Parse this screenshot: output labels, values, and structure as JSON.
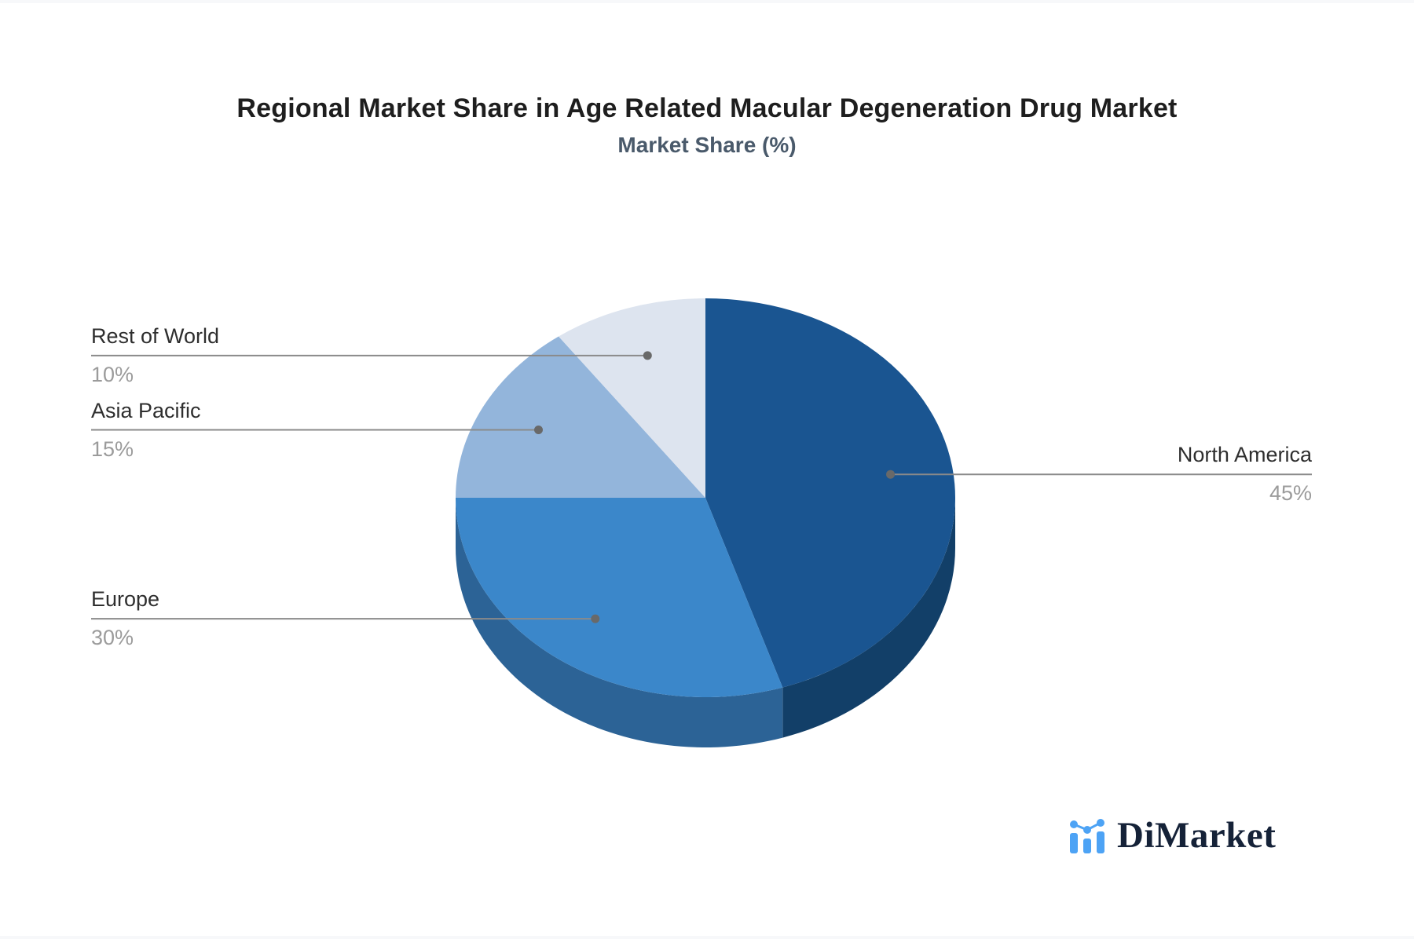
{
  "page": {
    "background_color": "#ffffff",
    "edge_strip_color": "#f7f8fa"
  },
  "header": {
    "title": "Regional Market Share in Age Related Macular Degeneration Drug Market",
    "subtitle": "Market Share (%)"
  },
  "chart_data": {
    "type": "pie",
    "style": "3d",
    "title": "Regional Market Share in Age Related Macular Degeneration Drug Market",
    "subtitle": "Market Share (%)",
    "unit": "percent",
    "start_angle_deg": 0,
    "direction": "clockwise",
    "legend_position": "leader-line-labels",
    "slices": [
      {
        "label": "North America",
        "value": 45,
        "pct_label": "45%",
        "color": "#1A5591",
        "side_color": "#123F68",
        "label_side": "right"
      },
      {
        "label": "Europe",
        "value": 30,
        "pct_label": "30%",
        "color": "#3B87CA",
        "side_color": "#2C6396",
        "label_side": "left"
      },
      {
        "label": "Asia Pacific",
        "value": 15,
        "pct_label": "15%",
        "color": "#93B5DB",
        "side_color": "#6E8FB4",
        "label_side": "left"
      },
      {
        "label": "Rest of World",
        "value": 10,
        "pct_label": "10%",
        "color": "#DDE4EF",
        "side_color": "#AEB7C6",
        "label_side": "left"
      }
    ],
    "label_text_color": "#2e2e2e",
    "pct_text_color": "#9b9b9b",
    "leader_line_color": "#8a8a8a",
    "leader_dot_color": "#696969"
  },
  "branding": {
    "logo_text": "DiMarket",
    "logo_icon": "bar-line-chart-icon",
    "logo_icon_color": "#4DA3F5",
    "logo_text_color": "#152238"
  }
}
